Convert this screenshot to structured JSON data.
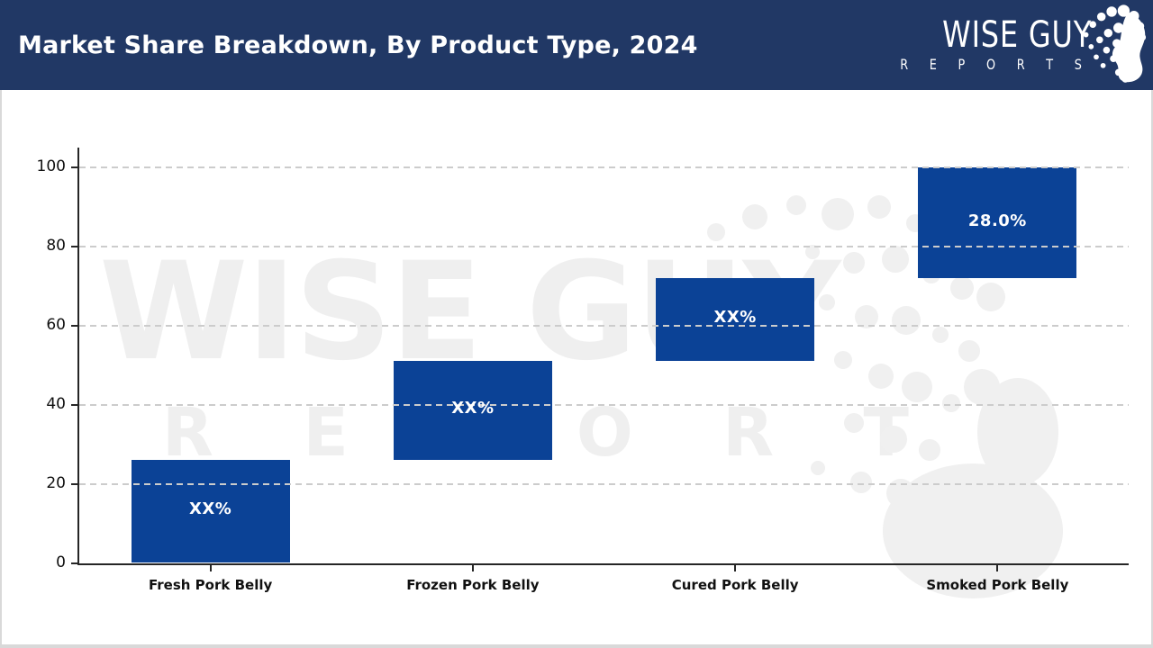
{
  "header": {
    "title": "Market Share Breakdown, By Product Type, 2024",
    "logo_line1": "WISE GUY",
    "logo_line2": "REPORTS"
  },
  "watermark": {
    "line1": "WISE GUY",
    "line2": "REPORTS"
  },
  "chart_data": {
    "type": "bar",
    "variant": "floating-waterfall",
    "title": "Market Share Breakdown, By Product Type, 2024",
    "categories": [
      "Fresh Pork Belly",
      "Frozen Pork Belly",
      "Cured Pork Belly",
      "Smoked Pork Belly"
    ],
    "segments": [
      {
        "category": "Fresh Pork Belly",
        "start": 0,
        "end": 26,
        "label": "XX%"
      },
      {
        "category": "Frozen Pork Belly",
        "start": 26,
        "end": 51,
        "label": "XX%"
      },
      {
        "category": "Cured Pork Belly",
        "start": 51,
        "end": 72,
        "label": "XX%"
      },
      {
        "category": "Smoked Pork Belly",
        "start": 72,
        "end": 100,
        "label": "28.0%"
      }
    ],
    "yticks": [
      0,
      20,
      40,
      60,
      80,
      100
    ],
    "ylim": [
      0,
      105
    ],
    "xlabel": "",
    "ylabel": "",
    "grid": "horizontal-dashed",
    "legend": "none",
    "bar_color": "#0B4296",
    "bar_label_color": "#FFFFFF"
  },
  "colors": {
    "header_bg": "#213865",
    "bar": "#0B4296",
    "grid": "#CCCCCC",
    "axis": "#262626",
    "watermark": "#EFEFEF",
    "bottom_strip": "#D9D9D9"
  }
}
